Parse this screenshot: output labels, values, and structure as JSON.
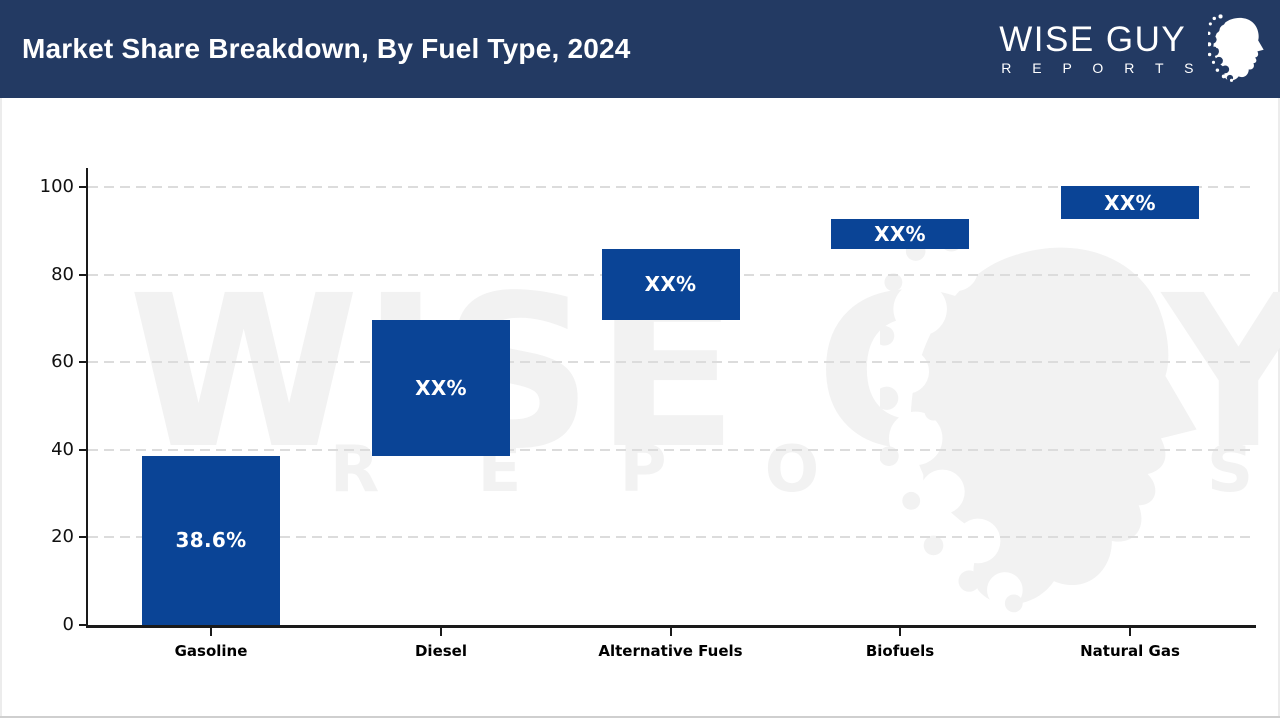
{
  "header": {
    "title": "Market Share Breakdown, By Fuel Type, 2024",
    "bg_color": "#233a63",
    "logo": {
      "line1": "WISE GUY",
      "line2": "R E P O R T S",
      "icon": "head-profile-dots-icon"
    }
  },
  "watermark": {
    "line1": "WISE GUY",
    "line2": "R E P O R T S",
    "color": "#f2f2f2"
  },
  "chart_data": {
    "type": "bar",
    "subtype": "waterfall",
    "title": "Market Share Breakdown, By Fuel Type, 2024",
    "categories": [
      "Gasoline",
      "Diesel",
      "Alternative Fuels",
      "Biofuels",
      "Natural Gas"
    ],
    "segments": [
      {
        "category": "Gasoline",
        "start": 0,
        "end": 38.6,
        "label": "38.6%"
      },
      {
        "category": "Diesel",
        "start": 38.6,
        "end": 69.7,
        "label": "XX%"
      },
      {
        "category": "Alternative Fuels",
        "start": 69.7,
        "end": 85.8,
        "label": "XX%"
      },
      {
        "category": "Biofuels",
        "start": 85.8,
        "end": 92.6,
        "label": "XX%"
      },
      {
        "category": "Natural Gas",
        "start": 92.6,
        "end": 100.3,
        "label": "XX%"
      }
    ],
    "y_ticks": [
      0,
      20,
      40,
      60,
      80,
      100
    ],
    "ylim": [
      0,
      105
    ],
    "xlabel": "",
    "ylabel": "",
    "legend": "none",
    "grid": "horizontal-dashed",
    "bar_color": "#0a4496",
    "axis_color": "#1a1a1a",
    "grid_color": "#dcdcdc",
    "value_label_color": "#ffffff"
  }
}
